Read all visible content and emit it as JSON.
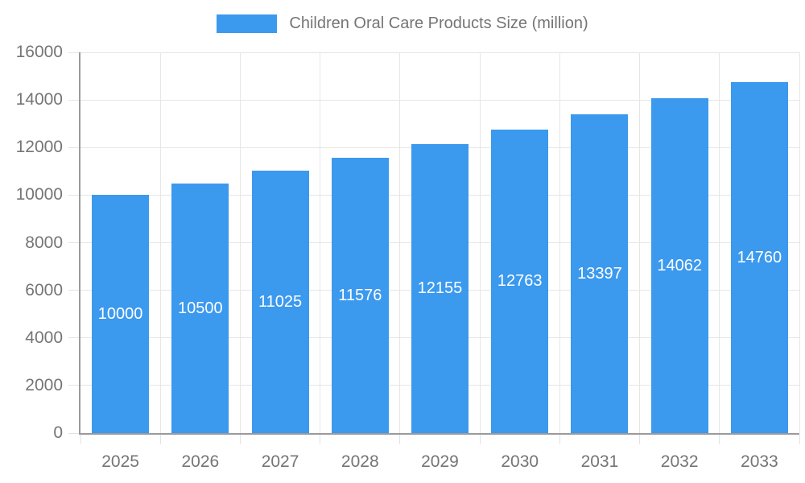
{
  "chart_data": {
    "type": "bar",
    "title": "Children Oral Care Products Size (million)",
    "categories": [
      "2025",
      "2026",
      "2027",
      "2028",
      "2029",
      "2030",
      "2031",
      "2032",
      "2033"
    ],
    "series": [
      {
        "name": "Children Oral Care Products Size (million)",
        "values": [
          10000,
          10500,
          11025,
          11576,
          12155,
          12763,
          13397,
          14062,
          14760
        ]
      }
    ],
    "xlabel": "",
    "ylabel": "",
    "ylim": [
      0,
      16000
    ],
    "y_ticks": [
      0,
      2000,
      4000,
      6000,
      8000,
      10000,
      12000,
      14000,
      16000
    ],
    "grid": true,
    "legend_position": "top",
    "bar_label_position": "inside-center"
  },
  "colors": {
    "bar": "#3b99ee",
    "axis_line": "#9a9a9a",
    "grid_line": "#e6e6e6",
    "tick_line": "#e3e3e3",
    "label_text": "#757575",
    "bar_value_text": "#ffffff",
    "background": "#ffffff"
  }
}
